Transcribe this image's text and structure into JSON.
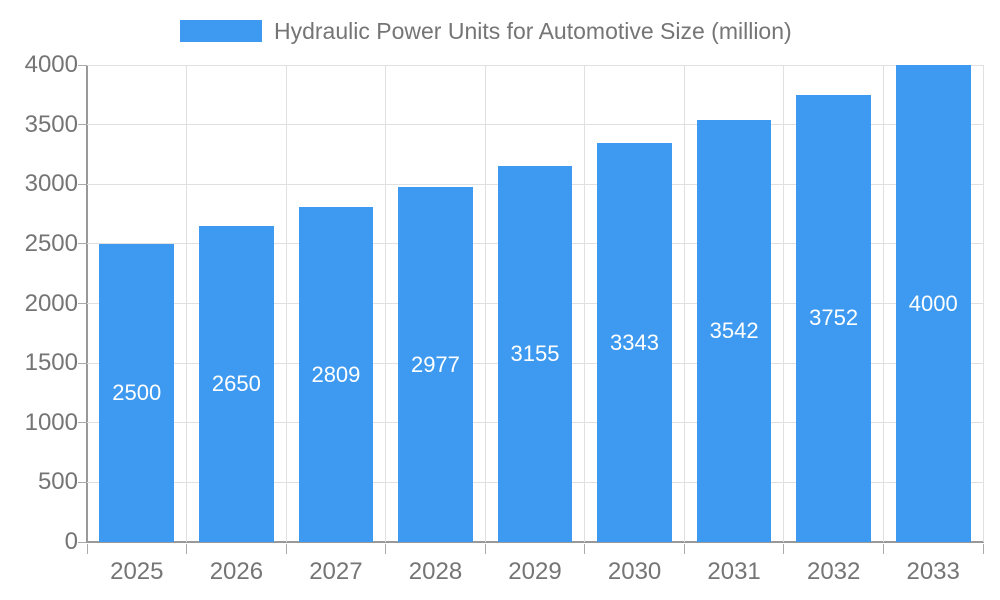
{
  "legend": {
    "label": "Hydraulic Power Units for Automotive Size (million)"
  },
  "chart_data": {
    "type": "bar",
    "title": "Hydraulic Power Units for Automotive Size (million)",
    "categories": [
      "2025",
      "2026",
      "2027",
      "2028",
      "2029",
      "2030",
      "2031",
      "2032",
      "2033"
    ],
    "values": [
      2500,
      2650,
      2809,
      2977,
      3155,
      3343,
      3542,
      3752,
      4000
    ],
    "bar_labels": [
      "2500",
      "2650",
      "2809",
      "2977",
      "3155",
      "3343",
      "3542",
      "3752",
      "4000"
    ],
    "xlabel": "",
    "ylabel": "",
    "ylim": [
      0,
      4000
    ],
    "yticks": [
      0,
      500,
      1000,
      1500,
      2000,
      2500,
      3000,
      3500,
      4000
    ],
    "grid": true,
    "legend_position": "top-center",
    "colors": {
      "bar": "#3D9AF0",
      "bar_label": "#FFFFFF",
      "axis_line": "#999999",
      "tick": "#AAAAAA",
      "gridline": "#E0E0E0",
      "text": "#757575"
    }
  }
}
